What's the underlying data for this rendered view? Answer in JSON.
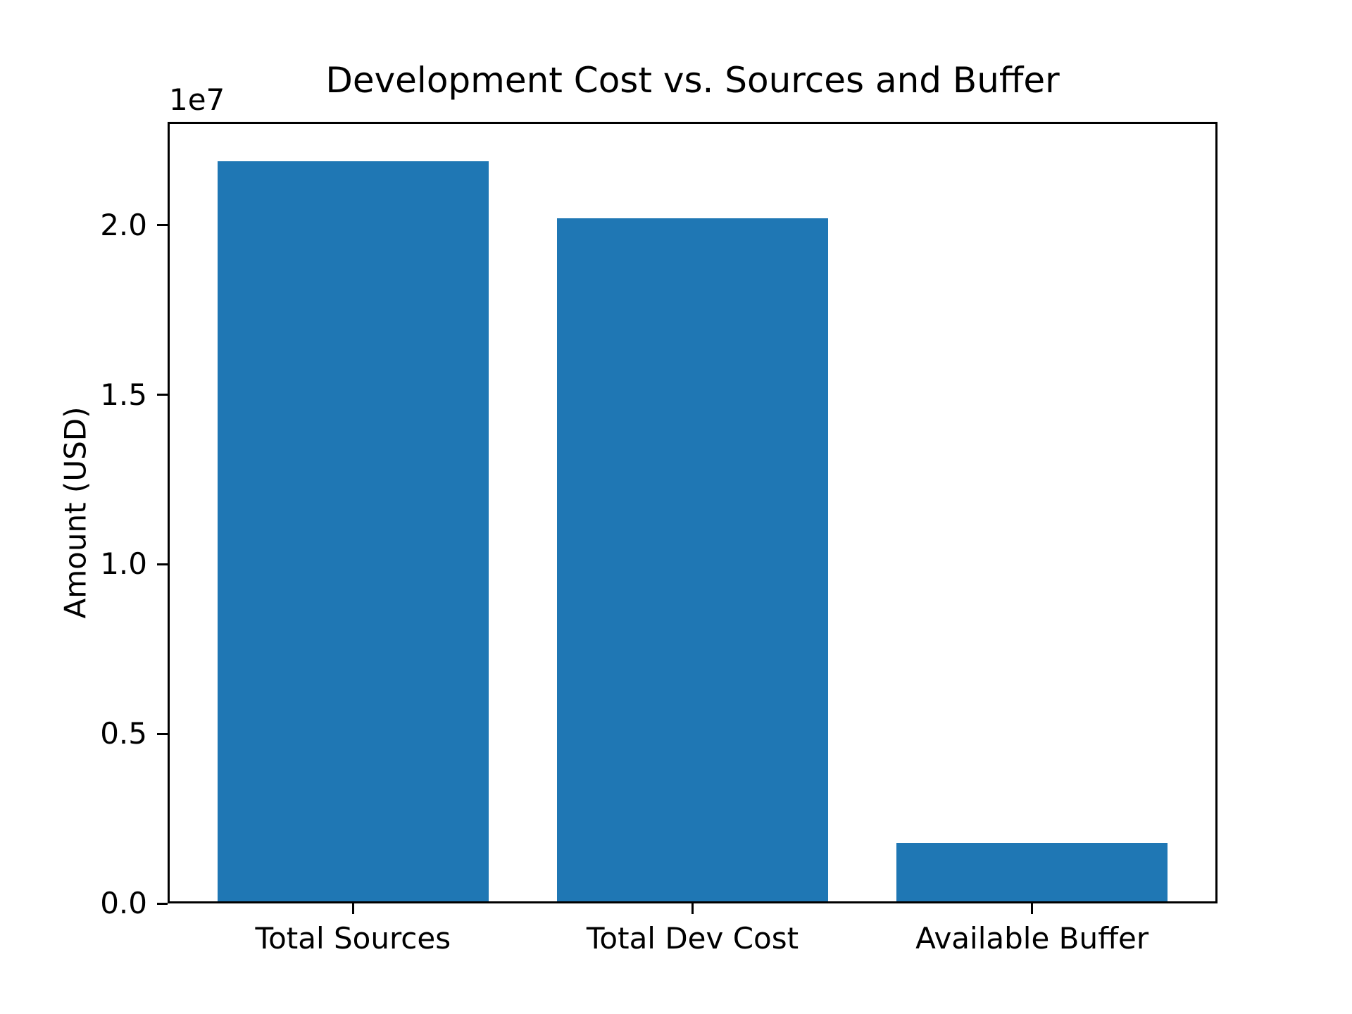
{
  "chart_data": {
    "type": "bar",
    "title": "Development Cost vs. Sources and Buffer",
    "ylabel": "Amount (USD)",
    "xlabel": "",
    "y_offset_label": "1e7",
    "categories": [
      "Total Sources",
      "Total Dev Cost",
      "Available Buffer"
    ],
    "values": [
      21950000,
      20250000,
      1740000
    ],
    "bar_color": "#1f77b4",
    "ylim": [
      0,
      23050000
    ],
    "y_ticks": [
      0,
      5000000,
      10000000,
      15000000,
      20000000
    ],
    "y_tick_labels": [
      "0.0",
      "0.5",
      "1.0",
      "1.5",
      "2.0"
    ],
    "bar_width_fraction": 0.8,
    "x_margin_fraction": 0.05,
    "grid": false,
    "legend": false
  },
  "colors": {
    "background": "#ffffff",
    "text": "#000000"
  }
}
